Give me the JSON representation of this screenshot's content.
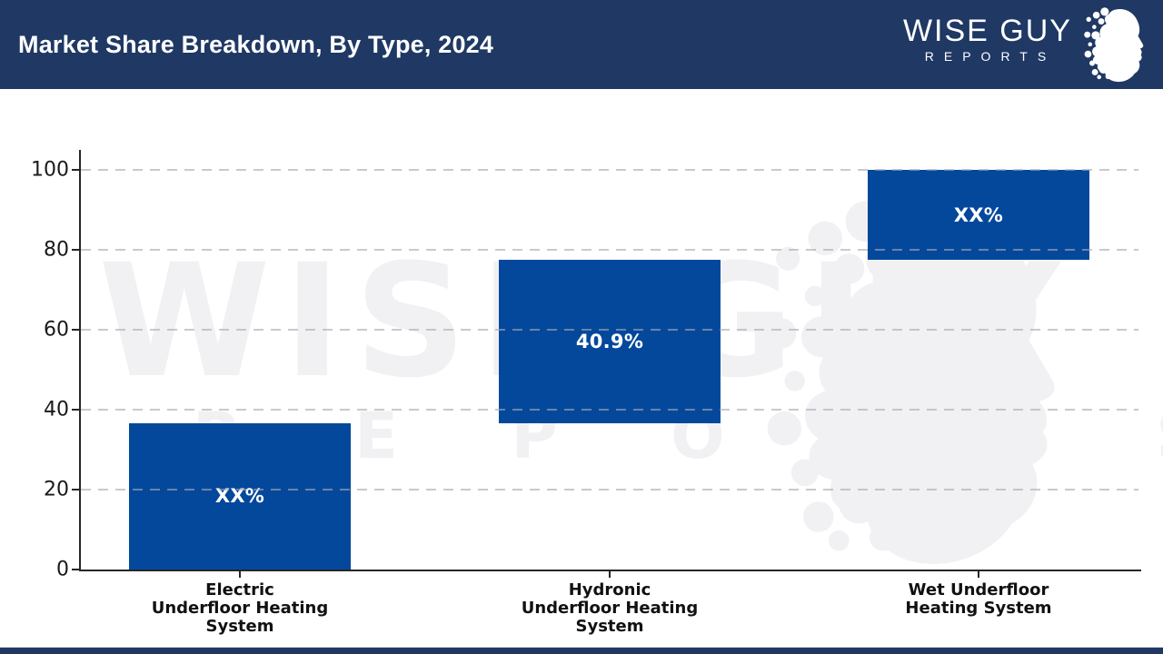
{
  "title": "Market Share Breakdown, By Type, 2024",
  "brand": {
    "name_top": "WISE GUY",
    "name_bottom": "REPORTS"
  },
  "watermark": {
    "text_top": "WISE GUY",
    "text_bottom": "R E P O R T S"
  },
  "colors": {
    "header_bg": "#1f3864",
    "footer_bg": "#1f3864",
    "bar_fill": "#04489c",
    "axis": "#262626",
    "watermark": "#f1f1f4",
    "bar_label_text": "#ffffff"
  },
  "chart_data": {
    "type": "bar",
    "subtype": "waterfall",
    "title": "Market Share Breakdown, By Type, 2024",
    "categories": [
      "Electric\nUnderfloor Heating\nSystem",
      "Hydronic\nUnderfloor Heating\nSystem",
      "Wet Underfloor\nHeating System"
    ],
    "segments": [
      {
        "category": "Electric Underfloor Heating System",
        "start": 0,
        "end": 36.6,
        "label": "XX%"
      },
      {
        "category": "Hydronic Underfloor Heating System",
        "start": 36.6,
        "end": 77.5,
        "label": "40.9%"
      },
      {
        "category": "Wet Underfloor Heating System",
        "start": 77.5,
        "end": 100,
        "label": "XX%"
      }
    ],
    "yticks": [
      0,
      20,
      40,
      60,
      80,
      100
    ],
    "ylim": [
      0,
      100
    ],
    "xlabel": "",
    "ylabel": "",
    "grid": "dashed-horizontal-over-bars",
    "legend": false
  }
}
